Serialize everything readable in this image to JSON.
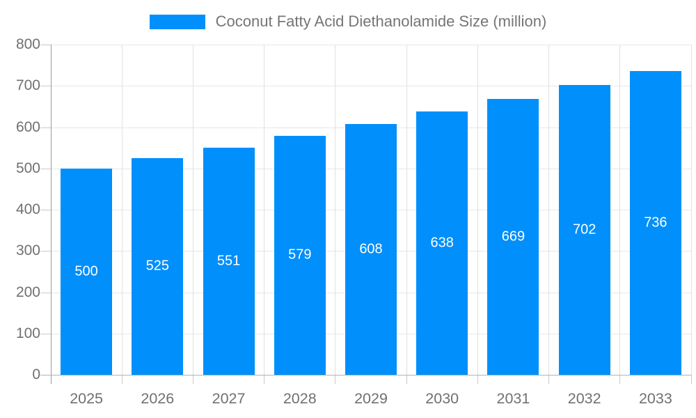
{
  "chart_data": {
    "type": "bar",
    "title": "Coconut Fatty Acid Diethanolamide Size (million)",
    "series": [
      {
        "name": "Coconut Fatty Acid Diethanolamide Size (million)",
        "values": [
          500,
          525,
          551,
          579,
          608,
          638,
          669,
          702,
          736
        ]
      }
    ],
    "categories": [
      "2025",
      "2026",
      "2027",
      "2028",
      "2029",
      "2030",
      "2031",
      "2032",
      "2033"
    ],
    "xlabel": "",
    "ylabel": "",
    "ylim": [
      0,
      800
    ],
    "ytick_step": 100,
    "grid": true,
    "legend_position": "top",
    "value_labels_shown": true,
    "style": {
      "bar_color": "#008FFB",
      "value_label_color": "#ffffff",
      "axis_label_color": "#707070",
      "legend_text_color": "#757575",
      "grid_color": "#e7e7e7",
      "axis_line_color": "#9b9b9b",
      "background": "#ffffff"
    }
  },
  "legend": {
    "label": "Coconut Fatty Acid Diethanolamide Size (million)"
  }
}
